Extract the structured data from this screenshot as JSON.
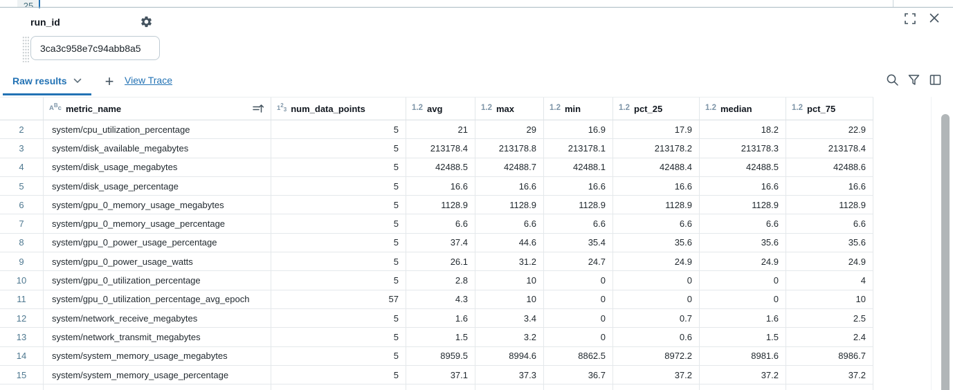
{
  "background": {
    "editor_line_number": "25"
  },
  "panel": {
    "title": "run_id",
    "input_value": "3ca3c958e7c94abb8a5",
    "toolbar": {
      "active_tab": "Raw results",
      "add_button": "+",
      "view_trace_link": "View Trace"
    },
    "icons": {
      "gear": "settings-gear",
      "expand": "fullscreen-corner-brackets",
      "close": "x-cross",
      "tab_chevron": "chevron-down",
      "search": "magnifier",
      "filter": "funnel",
      "columns": "panel-columns",
      "drag_handle": "dot-grid",
      "sort": "sort-ascending-arrow",
      "type_string": "ABc",
      "type_int": "123",
      "type_float": "1.2"
    }
  },
  "table": {
    "columns": [
      {
        "label": "metric_name",
        "type": "string",
        "sorted": "asc"
      },
      {
        "label": "num_data_points",
        "type": "int"
      },
      {
        "label": "avg",
        "type": "float"
      },
      {
        "label": "max",
        "type": "float"
      },
      {
        "label": "min",
        "type": "float"
      },
      {
        "label": "pct_25",
        "type": "float"
      },
      {
        "label": "median",
        "type": "float"
      },
      {
        "label": "pct_75",
        "type": "float"
      }
    ],
    "rows": [
      {
        "n": "2",
        "cells": [
          "system/cpu_utilization_percentage",
          "5",
          "21",
          "29",
          "16.9",
          "17.9",
          "18.2",
          "22.9"
        ]
      },
      {
        "n": "3",
        "cells": [
          "system/disk_available_megabytes",
          "5",
          "213178.4",
          "213178.8",
          "213178.1",
          "213178.2",
          "213178.3",
          "213178.4"
        ]
      },
      {
        "n": "4",
        "cells": [
          "system/disk_usage_megabytes",
          "5",
          "42488.5",
          "42488.7",
          "42488.1",
          "42488.4",
          "42488.5",
          "42488.6"
        ]
      },
      {
        "n": "5",
        "cells": [
          "system/disk_usage_percentage",
          "5",
          "16.6",
          "16.6",
          "16.6",
          "16.6",
          "16.6",
          "16.6"
        ]
      },
      {
        "n": "6",
        "cells": [
          "system/gpu_0_memory_usage_megabytes",
          "5",
          "1128.9",
          "1128.9",
          "1128.9",
          "1128.9",
          "1128.9",
          "1128.9"
        ]
      },
      {
        "n": "7",
        "cells": [
          "system/gpu_0_memory_usage_percentage",
          "5",
          "6.6",
          "6.6",
          "6.6",
          "6.6",
          "6.6",
          "6.6"
        ]
      },
      {
        "n": "8",
        "cells": [
          "system/gpu_0_power_usage_percentage",
          "5",
          "37.4",
          "44.6",
          "35.4",
          "35.6",
          "35.6",
          "35.6"
        ]
      },
      {
        "n": "9",
        "cells": [
          "system/gpu_0_power_usage_watts",
          "5",
          "26.1",
          "31.2",
          "24.7",
          "24.9",
          "24.9",
          "24.9"
        ]
      },
      {
        "n": "10",
        "cells": [
          "system/gpu_0_utilization_percentage",
          "5",
          "2.8",
          "10",
          "0",
          "0",
          "0",
          "4"
        ]
      },
      {
        "n": "11",
        "cells": [
          "system/gpu_0_utilization_percentage_avg_epoch",
          "57",
          "4.3",
          "10",
          "0",
          "0",
          "0",
          "10"
        ]
      },
      {
        "n": "12",
        "cells": [
          "system/network_receive_megabytes",
          "5",
          "1.6",
          "3.4",
          "0",
          "0.7",
          "1.6",
          "2.5"
        ]
      },
      {
        "n": "13",
        "cells": [
          "system/network_transmit_megabytes",
          "5",
          "1.5",
          "3.2",
          "0",
          "0.6",
          "1.5",
          "2.4"
        ]
      },
      {
        "n": "14",
        "cells": [
          "system/system_memory_usage_megabytes",
          "5",
          "8959.5",
          "8994.6",
          "8862.5",
          "8972.2",
          "8981.6",
          "8986.7"
        ]
      },
      {
        "n": "15",
        "cells": [
          "system/system_memory_usage_percentage",
          "5",
          "37.1",
          "37.3",
          "36.7",
          "37.2",
          "37.2",
          "37.2"
        ]
      }
    ]
  },
  "colors": {
    "accent_blue": "#2272B4",
    "icon_slate": "#44535F",
    "type_icon_blue_gray": "#7E95A8",
    "row_number": "#4E7890",
    "grid_border": "#E4E8EB",
    "cell_text": "#1F272D",
    "scrollbar_thumb": "#B1B6B8"
  }
}
